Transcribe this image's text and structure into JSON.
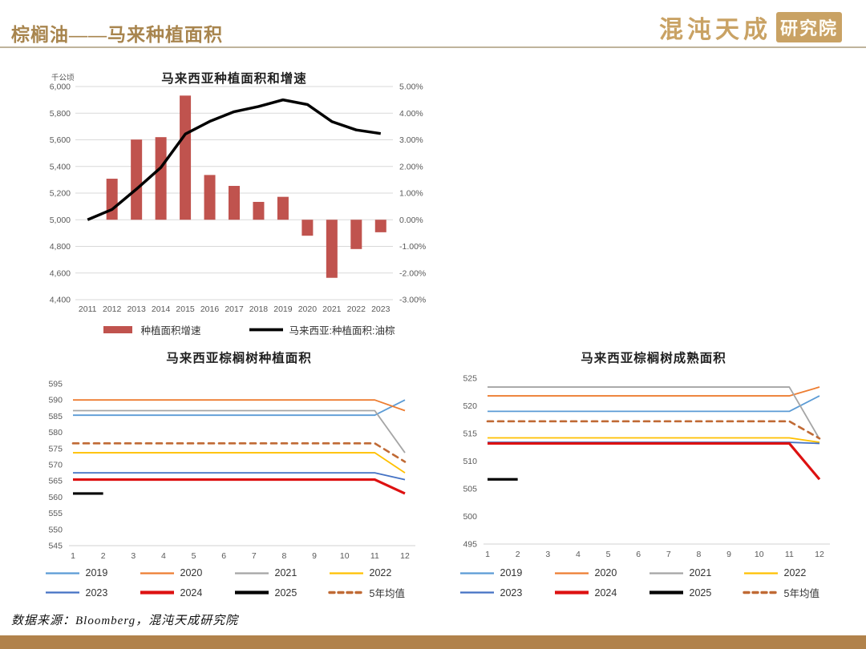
{
  "header": {
    "title": "棕榈油——马来种植面积",
    "logo_text": "混沌天成",
    "logo_box_text": "研究院"
  },
  "footer": {
    "source": "数据来源：Bloomberg，混沌天成研究院"
  },
  "colors": {
    "accent_gold": "#a8854e",
    "logo_gold": "#c9a264",
    "bottom_bar": "#b1824b",
    "gridline": "#d9d9d9",
    "tick_text": "#595959",
    "bar_red": "#c0534e"
  },
  "chart_data": [
    {
      "id": "main",
      "type": "combo_bar_line",
      "title": "马来西亚种植面积和增速",
      "unit_left": "千公顷",
      "categories": [
        "2011",
        "2012",
        "2013",
        "2014",
        "2015",
        "2016",
        "2017",
        "2018",
        "2019",
        "2020",
        "2021",
        "2022",
        "2023"
      ],
      "left_axis": {
        "min": 4400,
        "max": 6000,
        "step": 200,
        "format": "thousands"
      },
      "right_axis": {
        "min": -3,
        "max": 5,
        "step": 1,
        "format": "percent"
      },
      "bar_series": {
        "name": "种植面积增速",
        "color": "#c0534e",
        "axis": "right",
        "values": [
          null,
          1.54,
          3.01,
          3.1,
          4.66,
          1.68,
          1.27,
          0.67,
          0.86,
          -0.6,
          -2.18,
          -1.1,
          -0.47
        ]
      },
      "line_series": {
        "name": "马来西亚:种植面积:油棕",
        "color": "#000000",
        "axis": "left",
        "values": [
          5000,
          5077,
          5230,
          5392,
          5643,
          5738,
          5811,
          5850,
          5900,
          5865,
          5737,
          5674,
          5647
        ]
      },
      "legend_position": "bottom",
      "grid": true
    },
    {
      "id": "planted",
      "type": "line",
      "title": "马来西亚棕榈树种植面积",
      "x": [
        1,
        2,
        3,
        4,
        5,
        6,
        7,
        8,
        9,
        10,
        11,
        12
      ],
      "y_axis": {
        "min": 545,
        "max": 595,
        "step": 5
      },
      "grid": false,
      "legend_position": "bottom",
      "series": [
        {
          "name": "2019",
          "color": "#5b9bd5",
          "width": 1.8,
          "dash": false,
          "values": [
            585.3,
            585.3,
            585.3,
            585.3,
            585.3,
            585.3,
            585.3,
            585.3,
            585.3,
            585.3,
            585.3,
            590.0
          ]
        },
        {
          "name": "2020",
          "color": "#ed7d31",
          "width": 1.8,
          "dash": false,
          "values": [
            590.0,
            590.0,
            590.0,
            590.0,
            590.0,
            590.0,
            590.0,
            590.0,
            590.0,
            590.0,
            590.0,
            586.7
          ]
        },
        {
          "name": "2021",
          "color": "#a5a5a5",
          "width": 1.8,
          "dash": false,
          "values": [
            586.7,
            586.7,
            586.7,
            586.7,
            586.7,
            586.7,
            586.7,
            586.7,
            586.7,
            586.7,
            586.7,
            573.7
          ]
        },
        {
          "name": "2022",
          "color": "#ffc000",
          "width": 1.8,
          "dash": false,
          "values": [
            573.7,
            573.7,
            573.7,
            573.7,
            573.7,
            573.7,
            573.7,
            573.7,
            573.7,
            573.7,
            573.7,
            567.5
          ]
        },
        {
          "name": "2023",
          "color": "#4472c4",
          "width": 1.8,
          "dash": false,
          "values": [
            567.5,
            567.5,
            567.5,
            567.5,
            567.5,
            567.5,
            567.5,
            567.5,
            567.5,
            567.5,
            567.5,
            565.4
          ]
        },
        {
          "name": "2024",
          "color": "#dd1111",
          "width": 3.2,
          "dash": false,
          "values": [
            565.4,
            565.4,
            565.4,
            565.4,
            565.4,
            565.4,
            565.4,
            565.4,
            565.4,
            565.4,
            565.4,
            561.1
          ]
        },
        {
          "name": "2025",
          "color": "#000000",
          "width": 3.2,
          "dash": false,
          "values": [
            561.1,
            561.1,
            null,
            null,
            null,
            null,
            null,
            null,
            null,
            null,
            null,
            null
          ]
        },
        {
          "name": "5年均值",
          "color": "#c06a35",
          "width": 2.6,
          "dash": true,
          "values": [
            576.6,
            576.6,
            576.6,
            576.6,
            576.6,
            576.6,
            576.6,
            576.6,
            576.6,
            576.6,
            576.6,
            570.9
          ]
        }
      ]
    },
    {
      "id": "mature",
      "type": "line",
      "title": "马来西亚棕榈树成熟面积",
      "x": [
        1,
        2,
        3,
        4,
        5,
        6,
        7,
        8,
        9,
        10,
        11,
        12
      ],
      "y_axis": {
        "min": 495,
        "max": 525,
        "step": 5
      },
      "grid": false,
      "legend_position": "bottom",
      "series": [
        {
          "name": "2019",
          "color": "#5b9bd5",
          "width": 1.8,
          "dash": false,
          "values": [
            519.0,
            519.0,
            519.0,
            519.0,
            519.0,
            519.0,
            519.0,
            519.0,
            519.0,
            519.0,
            519.0,
            521.8
          ]
        },
        {
          "name": "2020",
          "color": "#ed7d31",
          "width": 1.8,
          "dash": false,
          "values": [
            521.8,
            521.8,
            521.8,
            521.8,
            521.8,
            521.8,
            521.8,
            521.8,
            521.8,
            521.8,
            521.8,
            523.4
          ]
        },
        {
          "name": "2021",
          "color": "#a5a5a5",
          "width": 1.8,
          "dash": false,
          "values": [
            523.4,
            523.4,
            523.4,
            523.4,
            523.4,
            523.4,
            523.4,
            523.4,
            523.4,
            523.4,
            523.4,
            514.0
          ]
        },
        {
          "name": "2022",
          "color": "#ffc000",
          "width": 1.8,
          "dash": false,
          "values": [
            514.2,
            514.2,
            514.2,
            514.2,
            514.2,
            514.2,
            514.2,
            514.2,
            514.2,
            514.2,
            514.2,
            513.4
          ]
        },
        {
          "name": "2023",
          "color": "#4472c4",
          "width": 1.8,
          "dash": false,
          "values": [
            513.4,
            513.4,
            513.4,
            513.4,
            513.4,
            513.4,
            513.4,
            513.4,
            513.4,
            513.4,
            513.4,
            513.2
          ]
        },
        {
          "name": "2024",
          "color": "#dd1111",
          "width": 3.2,
          "dash": false,
          "values": [
            513.2,
            513.2,
            513.2,
            513.2,
            513.2,
            513.2,
            513.2,
            513.2,
            513.2,
            513.2,
            513.2,
            506.7
          ]
        },
        {
          "name": "2025",
          "color": "#000000",
          "width": 3.2,
          "dash": false,
          "values": [
            506.7,
            506.7,
            null,
            null,
            null,
            null,
            null,
            null,
            null,
            null,
            null,
            null
          ]
        },
        {
          "name": "5年均值",
          "color": "#c06a35",
          "width": 2.6,
          "dash": true,
          "values": [
            517.2,
            517.2,
            517.2,
            517.2,
            517.2,
            517.2,
            517.2,
            517.2,
            517.2,
            517.2,
            517.2,
            514.1
          ]
        }
      ]
    }
  ]
}
